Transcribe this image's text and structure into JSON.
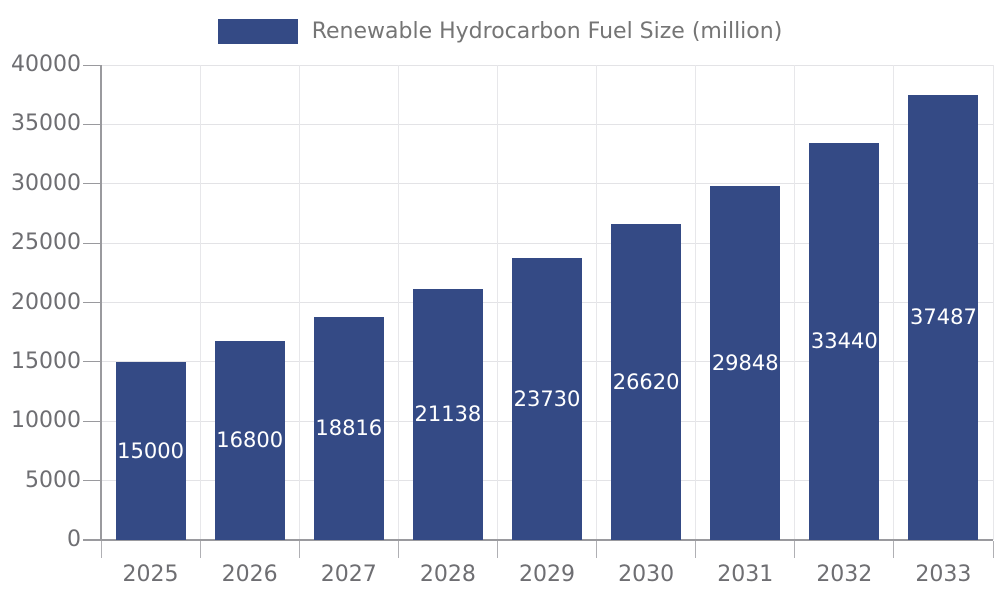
{
  "legend": {
    "label": "Renewable Hydrocarbon Fuel Size (million)"
  },
  "colors": {
    "bar": "#344a85",
    "value_label": "#ffffff",
    "legend_text": "#757575",
    "axis_label": "#6e6e72",
    "axis_line": "#9a9a9e",
    "gridline_h": "#e3e3e6",
    "gridline_v": "#e7e7ea",
    "background": "#ffffff"
  },
  "chart_data": {
    "type": "bar",
    "title": "Renewable Hydrocarbon Fuel Size (million)",
    "categories": [
      "2025",
      "2026",
      "2027",
      "2028",
      "2029",
      "2030",
      "2031",
      "2032",
      "2033"
    ],
    "series": [
      {
        "name": "Renewable Hydrocarbon Fuel Size (million)",
        "values": [
          15000,
          16800,
          18816,
          21138,
          23730,
          26620,
          29848,
          33440,
          37487
        ]
      }
    ],
    "xlabel": "",
    "ylabel": "",
    "ylim": [
      0,
      40000
    ],
    "y_ticks": [
      0,
      5000,
      10000,
      15000,
      20000,
      25000,
      30000,
      35000,
      40000
    ],
    "grid": true,
    "legend_position": "top-center",
    "value_label_position": "inside-center"
  }
}
